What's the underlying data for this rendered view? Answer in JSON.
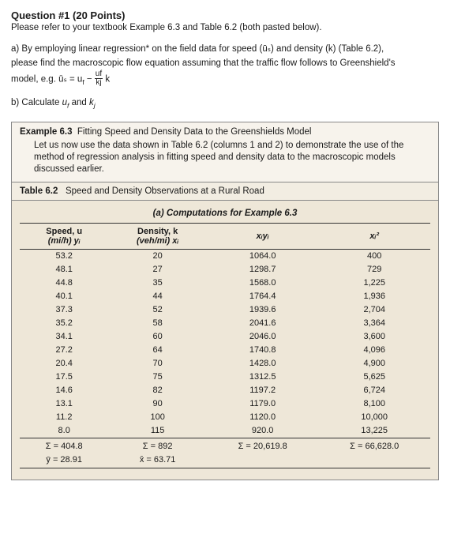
{
  "question": {
    "title_main": "Question #1 (20 Points)",
    "title_sub": "Please refer to your textbook Example 6.3 and Table 6.2 (both pasted below).",
    "part_a_line1": "a) By employing linear regression* on the field data for speed (ūₛ) and density (k) (Table 6.2),",
    "part_a_line2": "please find the macroscopic flow equation assuming that the traffic flow follows to Greenshield's",
    "part_a_line3_prefix": "model, e.g. ūₛ = u",
    "part_a_frac_num": "uf",
    "part_a_frac_den": "kj",
    "part_a_line3_suffix": "k",
    "part_b": "b) Calculate uf and kj"
  },
  "example": {
    "label": "Example 6.3",
    "title": "Fitting Speed and Density Data to the Greenshields Model",
    "body": "Let us now use the data shown in Table 6.2 (columns 1 and 2) to demonstrate the use of the method of regression analysis in fitting speed and density data to the macroscopic models discussed earlier."
  },
  "table": {
    "label": "Table 6.2",
    "title": "Speed and Density Observations at a Rural Road",
    "subtitle": "(a) Computations for Example 6.3",
    "headers": {
      "c1a": "Speed, u",
      "c1b": "(mi/h) yᵢ",
      "c2a": "Density, k",
      "c2b": "(veh/mi) xᵢ",
      "c3": "xᵢyᵢ",
      "c4": "xᵢ²"
    },
    "rows": [
      {
        "y": "53.2",
        "x": "20",
        "xy": "1064.0",
        "x2": "400"
      },
      {
        "y": "48.1",
        "x": "27",
        "xy": "1298.7",
        "x2": "729"
      },
      {
        "y": "44.8",
        "x": "35",
        "xy": "1568.0",
        "x2": "1,225"
      },
      {
        "y": "40.1",
        "x": "44",
        "xy": "1764.4",
        "x2": "1,936"
      },
      {
        "y": "37.3",
        "x": "52",
        "xy": "1939.6",
        "x2": "2,704"
      },
      {
        "y": "35.2",
        "x": "58",
        "xy": "2041.6",
        "x2": "3,364"
      },
      {
        "y": "34.1",
        "x": "60",
        "xy": "2046.0",
        "x2": "3,600"
      },
      {
        "y": "27.2",
        "x": "64",
        "xy": "1740.8",
        "x2": "4,096"
      },
      {
        "y": "20.4",
        "x": "70",
        "xy": "1428.0",
        "x2": "4,900"
      },
      {
        "y": "17.5",
        "x": "75",
        "xy": "1312.5",
        "x2": "5,625"
      },
      {
        "y": "14.6",
        "x": "82",
        "xy": "1197.2",
        "x2": "6,724"
      },
      {
        "y": "13.1",
        "x": "90",
        "xy": "1179.0",
        "x2": "8,100"
      },
      {
        "y": "11.2",
        "x": "100",
        "xy": "1120.0",
        "x2": "10,000"
      },
      {
        "y": "8.0",
        "x": "115",
        "xy": "920.0",
        "x2": "13,225"
      }
    ],
    "sums": {
      "y": "Σ = 404.8",
      "x": "Σ = 892",
      "xy": "Σ = 20,619.8",
      "x2": "Σ = 66,628.0"
    },
    "means": {
      "y": "ȳ = 28.91",
      "x": "x̄ = 63.71"
    }
  }
}
